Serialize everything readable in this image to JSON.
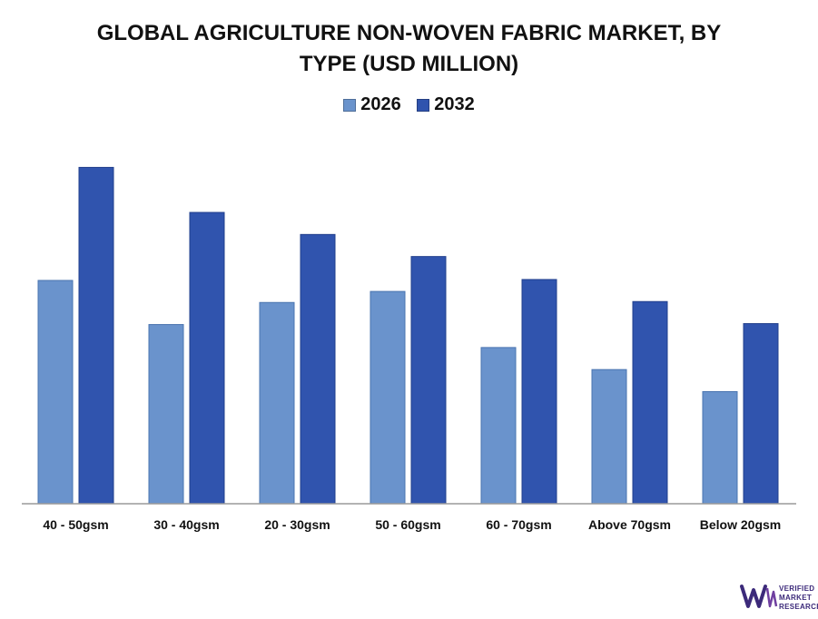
{
  "title_lines": [
    "GLOBAL AGRICULTURE NON-WOVEN FABRIC MARKET, BY",
    "TYPE (USD MILLION)"
  ],
  "legend": [
    {
      "label": "2026",
      "color": "#6a93cc"
    },
    {
      "label": "2032",
      "color": "#3054ae"
    }
  ],
  "brand": {
    "line1": "VERIFIED",
    "line2": "MARKET",
    "line3": "RESEARCH",
    "color": "#3c2a7a"
  },
  "chart_data": {
    "type": "bar",
    "title": "GLOBAL AGRICULTURE NON-WOVEN FABRIC MARKET, BY TYPE (USD MILLION)",
    "categories": [
      "40 - 50gsm",
      "30 - 40gsm",
      "20 - 30gsm",
      "50 - 60gsm",
      "60 - 70gsm",
      "Above 70gsm",
      "Below 20gsm"
    ],
    "series": [
      {
        "name": "2026",
        "color": "#6a93cc",
        "values": [
          243,
          195,
          219,
          231,
          170,
          146,
          122
        ]
      },
      {
        "name": "2032",
        "color": "#3054ae",
        "values": [
          366,
          317,
          293,
          269,
          244,
          220,
          196
        ]
      }
    ],
    "ylim": [
      0,
      400
    ],
    "xlabel": "",
    "ylabel": "",
    "grid": false,
    "legend_position": "top-center"
  }
}
